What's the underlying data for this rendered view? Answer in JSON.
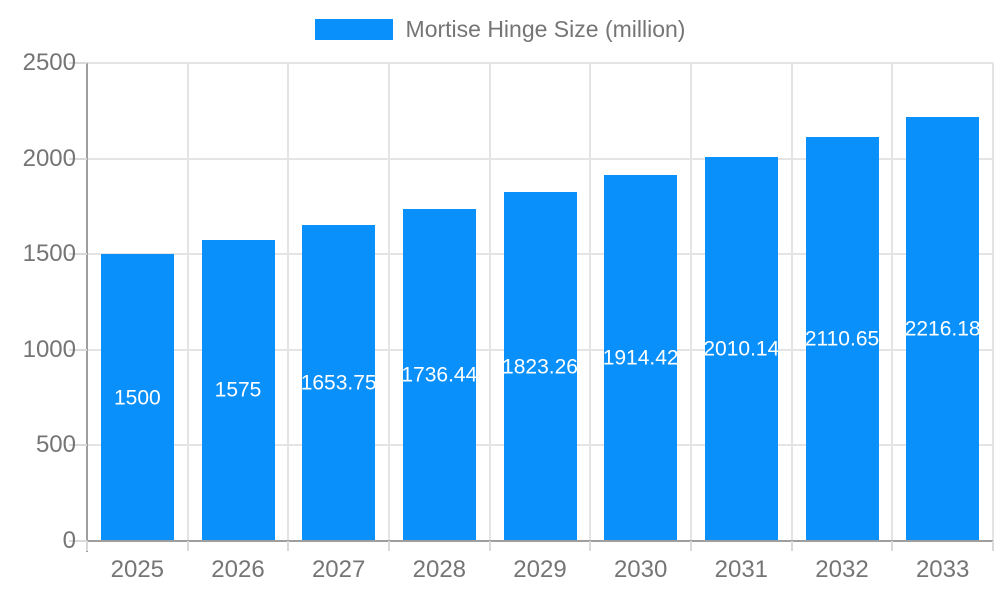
{
  "legend": {
    "label": "Mortise Hinge Size (million)"
  },
  "colors": {
    "bar": "#0a90fa",
    "grid": "#e4e4e4",
    "axis": "#9e9e9e",
    "tick": "#d9d9d9",
    "text": "#757575",
    "bar_label_text": "#ffffff",
    "background": "#ffffff"
  },
  "chart_data": {
    "type": "bar",
    "title": "Mortise Hinge Size (million)",
    "series_name": "Mortise Hinge Size (million)",
    "categories": [
      "2025",
      "2026",
      "2027",
      "2028",
      "2029",
      "2030",
      "2031",
      "2032",
      "2033"
    ],
    "values": [
      1500,
      1575,
      1653.75,
      1736.44,
      1823.26,
      1914.42,
      2010.14,
      2110.65,
      2216.18
    ],
    "value_labels": [
      "1500",
      "1575",
      "1653.75",
      "1736.44",
      "1823.26",
      "1914.42",
      "2010.14",
      "2110.65",
      "2216.18"
    ],
    "xlabel": "",
    "ylabel": "",
    "ylim": [
      0,
      2500
    ],
    "yticks": [
      0,
      500,
      1000,
      1500,
      2000,
      2500
    ],
    "ytick_labels": [
      "0",
      "500",
      "1000",
      "1500",
      "2000",
      "2500"
    ],
    "grid": true,
    "legend_position": "top-center",
    "bar_value_labels_inside": true
  }
}
